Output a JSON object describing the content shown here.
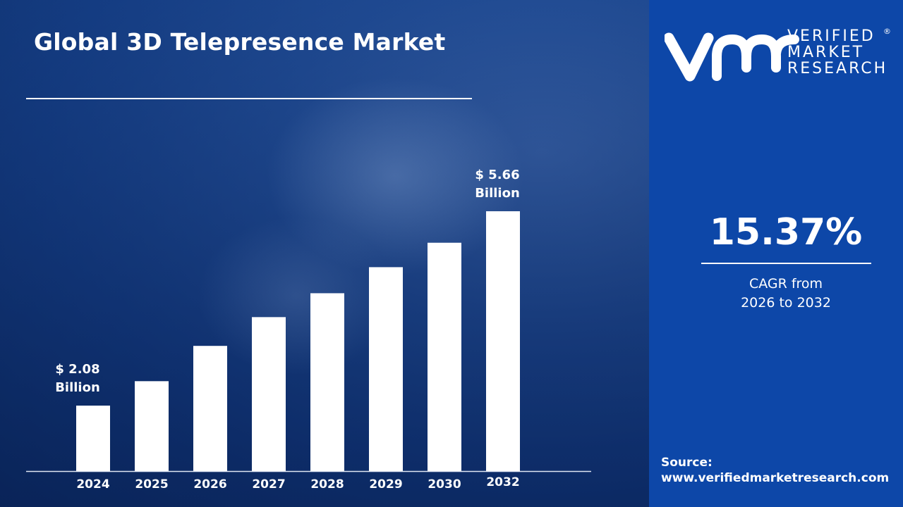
{
  "title": "Global 3D Telepresence Market",
  "brand": {
    "logo_text": "vmr",
    "line1": "VERIFIED",
    "line2": "MARKET",
    "line3": "RESEARCH",
    "registered": "®"
  },
  "cagr": {
    "value": "15.37%",
    "label_line1": "CAGR from",
    "label_line2": "2026 to 2032"
  },
  "source": {
    "label": "Source:",
    "url": "www.verifiedmarketresearch.com"
  },
  "colors": {
    "bar": "#ffffff",
    "panel": "#0d47a8",
    "background": "#1f4a92"
  },
  "chart_data": {
    "type": "bar",
    "title": "Global 3D Telepresence Market",
    "categories": [
      "2024",
      "2025",
      "2026",
      "2027",
      "2028",
      "2029",
      "2030",
      "2032"
    ],
    "values": [
      2.08,
      2.53,
      3.18,
      3.71,
      4.15,
      4.63,
      5.08,
      5.66
    ],
    "unit": "USD Billion",
    "annotations": [
      {
        "category": "2024",
        "line1": "$ 2.08",
        "line2": "Billion"
      },
      {
        "category": "2032",
        "line1": "$ 5.66",
        "line2": "Billion"
      }
    ],
    "grid": false,
    "legend": "none"
  }
}
